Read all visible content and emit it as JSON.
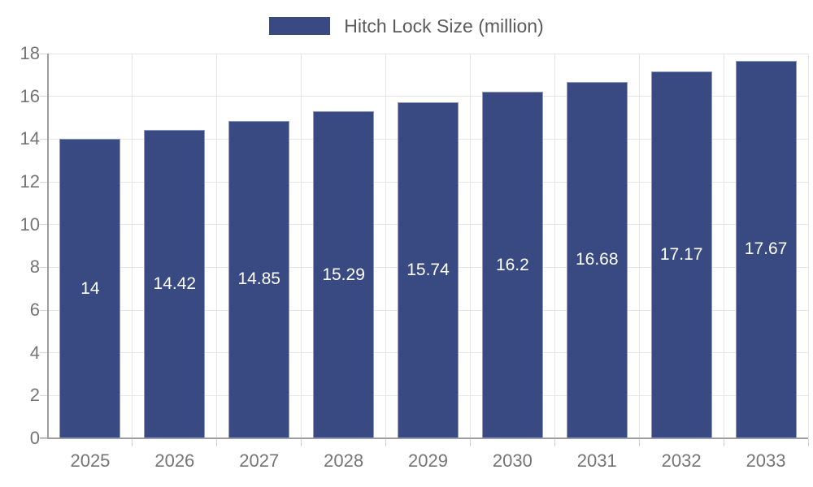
{
  "legend": {
    "label": "Hitch Lock Size (million)"
  },
  "colors": {
    "bar": "#394a83",
    "grid": "#e6e6e6",
    "axis": "#9e9e9e",
    "tick_text": "#757575",
    "legend_text": "#5a5a5a",
    "value_label": "#ffffff"
  },
  "chart_data": {
    "type": "bar",
    "title": "",
    "xlabel": "",
    "ylabel": "",
    "categories": [
      "2025",
      "2026",
      "2027",
      "2028",
      "2029",
      "2030",
      "2031",
      "2032",
      "2033"
    ],
    "series": [
      {
        "name": "Hitch Lock Size (million)",
        "values": [
          14,
          14.42,
          14.85,
          15.29,
          15.74,
          16.2,
          16.68,
          17.17,
          17.67
        ]
      }
    ],
    "value_labels": [
      "14",
      "14.42",
      "14.85",
      "15.29",
      "15.74",
      "16.2",
      "16.68",
      "17.17",
      "17.67"
    ],
    "ylim": [
      0,
      18
    ],
    "ytick_step": 2,
    "yticks": [
      0,
      2,
      4,
      6,
      8,
      10,
      12,
      14,
      16,
      18
    ],
    "grid": true,
    "legend_position": "top"
  }
}
